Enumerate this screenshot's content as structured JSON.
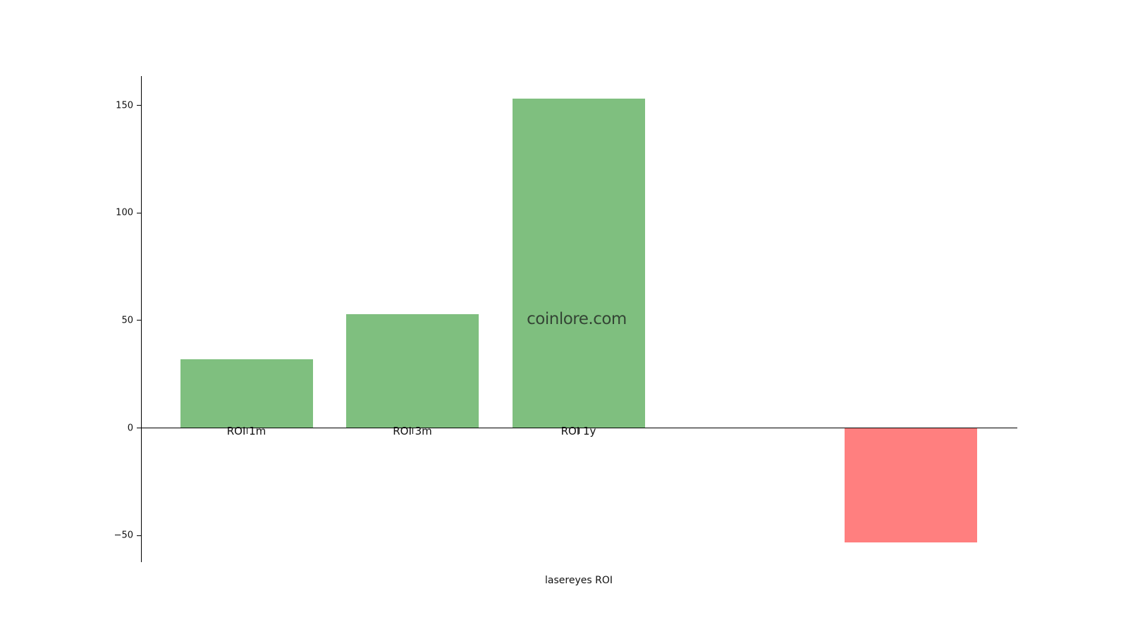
{
  "watermark": "coinlore.com",
  "chart_data": {
    "type": "bar",
    "title": "",
    "xlabel": "lasereyes ROI",
    "ylabel": "",
    "categories": [
      "ROI 1m",
      "ROI 3m",
      "ROI 1y",
      ""
    ],
    "values": [
      32,
      53,
      153,
      -53
    ],
    "bar_colors": [
      "#7fbf7f",
      "#7fbf7f",
      "#7fbf7f",
      "#ff7f7f"
    ],
    "positive_color": "#7fbf7f",
    "negative_color": "#ff7f7f",
    "x_positions": [
      0,
      1,
      2,
      4
    ],
    "bar_width_fraction": 0.8,
    "yticks": [
      150,
      100,
      50,
      0,
      -50
    ],
    "ytick_labels": [
      "150",
      "100",
      "50",
      "0",
      "−50"
    ],
    "ylim": [
      -62,
      164
    ],
    "grid": false,
    "legend": null,
    "watermark": "coinlore.com"
  }
}
